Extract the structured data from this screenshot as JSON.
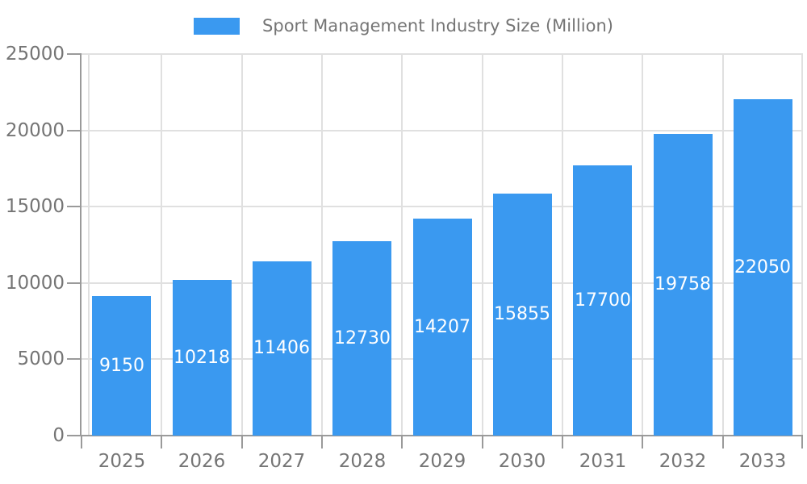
{
  "colors": {
    "background": "#FFFFFF",
    "bar": "#3A99F0",
    "axis": "#9A9A9A",
    "grid": "#E0E0E0",
    "text": "#757575",
    "value_label": "#FFFFFF"
  },
  "legend": {
    "label": "Sport Management Industry Size (Million)"
  },
  "chart_data": {
    "type": "bar",
    "title": "Sport Management Industry Size (Million)",
    "categories": [
      "2025",
      "2026",
      "2027",
      "2028",
      "2029",
      "2030",
      "2031",
      "2032",
      "2033"
    ],
    "values": [
      9150,
      10218,
      11406,
      12730,
      14207,
      15855,
      17700,
      19758,
      22050
    ],
    "xlabel": "",
    "ylabel": "",
    "ylim": [
      0,
      25000
    ],
    "yticks": [
      0,
      5000,
      10000,
      15000,
      20000,
      25000
    ],
    "grid": true,
    "legend_position": "top",
    "value_label_style": "inside-center-white"
  }
}
